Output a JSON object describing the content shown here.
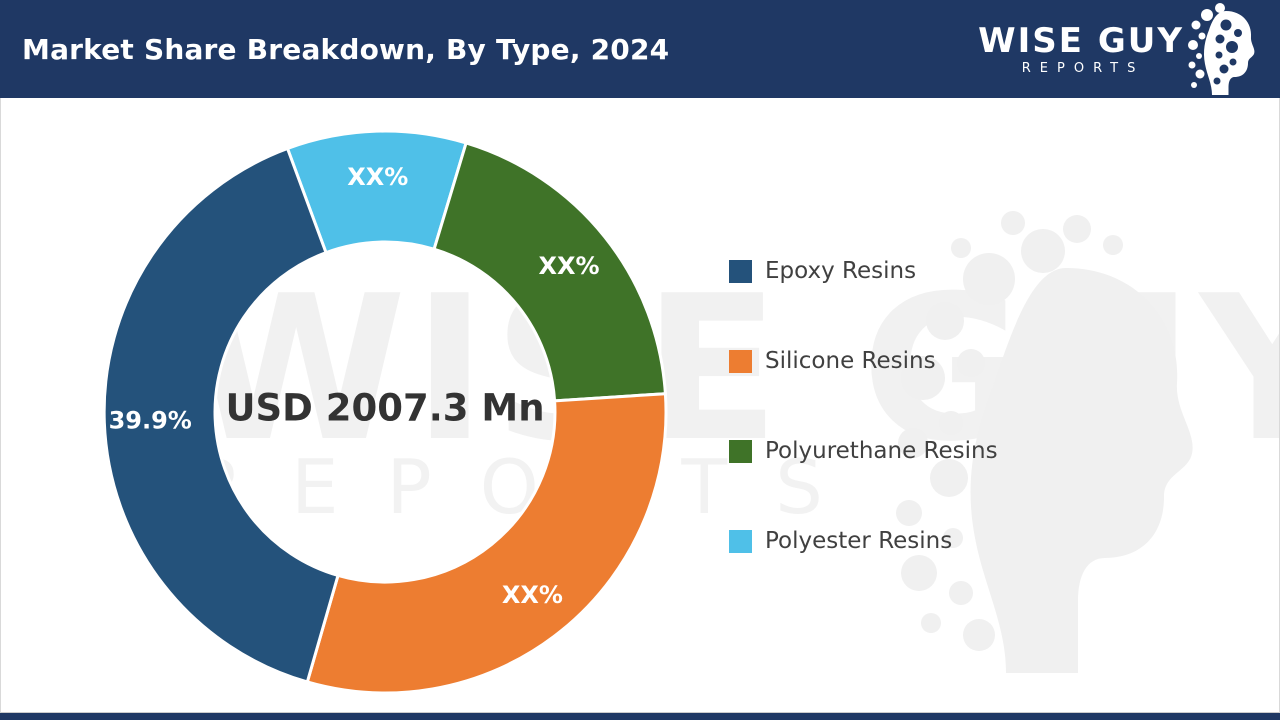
{
  "header": {
    "title": "Market Share Breakdown, By Type, 2024",
    "logo": {
      "line1": "WISE GUY",
      "line2": "REPORTS"
    }
  },
  "watermark": {
    "line1": "WISE GUY",
    "line2": "REPORTS"
  },
  "colors": {
    "header_bg": "#1f3864",
    "center_text": "#333333",
    "legend_text": "#404040",
    "watermark": "#f1f1f1"
  },
  "chart_data": {
    "type": "pie",
    "subtype": "donut",
    "title": "Market Share Breakdown, By Type, 2024",
    "center_label": "USD 2007.3 Mn",
    "start_angle_deg": -20.3,
    "legend_position": "right",
    "segments": [
      {
        "name": "Polyester Resins",
        "label": "XX%",
        "value_pct": 10.3,
        "color": "#4fc0e8"
      },
      {
        "name": "Polyurethane Resins",
        "label": "XX%",
        "value_pct": 19.3,
        "color": "#3f7328"
      },
      {
        "name": "Silicone Resins",
        "label": "XX%",
        "value_pct": 30.5,
        "color": "#ed7d31"
      },
      {
        "name": "Epoxy Resins",
        "label": "39.9%",
        "value_pct": 39.9,
        "color": "#24527b"
      }
    ],
    "legend_items": [
      "Epoxy Resins",
      "Silicone Resins",
      "Polyurethane Resins",
      "Polyester Resins"
    ]
  }
}
